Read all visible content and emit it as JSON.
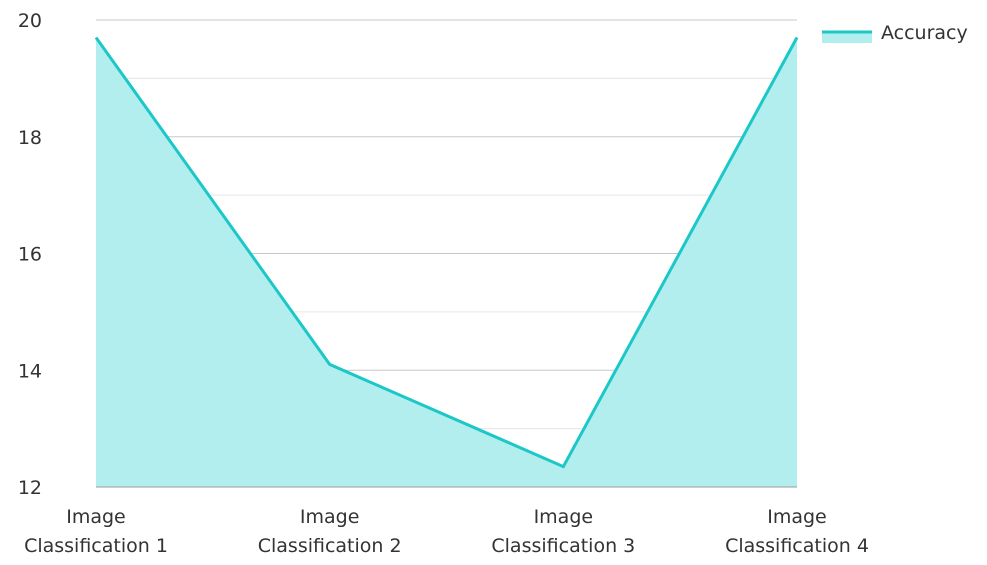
{
  "chart_data": {
    "type": "area",
    "categories": [
      [
        "Image",
        "Classification 1"
      ],
      [
        "Image",
        "Classification 2"
      ],
      [
        "Image",
        "Classification 3"
      ],
      [
        "Image",
        "Classification 4"
      ]
    ],
    "series": [
      {
        "name": "Accuracy",
        "values": [
          19.7,
          14.1,
          12.35,
          19.7
        ],
        "line_color": "#1cc7c7",
        "fill_color": "#b2eeee"
      }
    ],
    "ylim": [
      12,
      20
    ],
    "yticks": [
      12,
      14,
      16,
      18,
      20
    ],
    "grid": true,
    "minor_grid": true,
    "legend": "top-right",
    "grid_color_major": "#c8c8c8",
    "grid_color_minor": "#e6e6e6",
    "axis_color": "#999999"
  }
}
